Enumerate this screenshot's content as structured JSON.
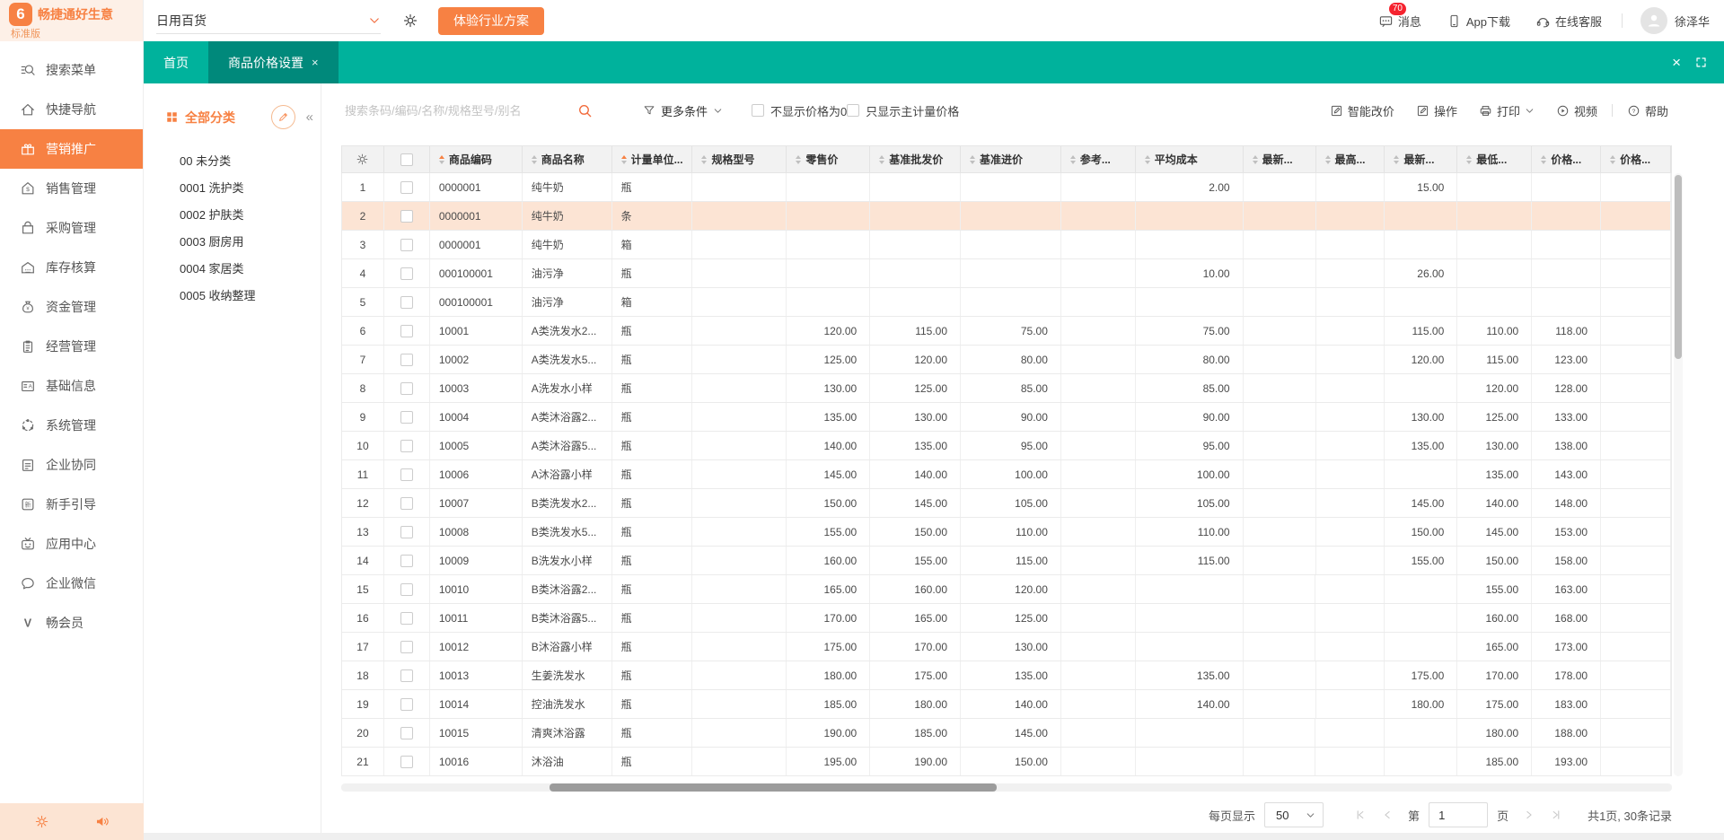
{
  "colors": {
    "teal": "#00b29c",
    "teal_dark": "#00897b",
    "orange": "#f78143",
    "row_highlight": "#fce4d4",
    "badge_red": "#f5232f"
  },
  "brand": {
    "name": "畅捷通好生意",
    "edition": "标准版",
    "logo_glyph": "6"
  },
  "topbar": {
    "org_selector": "日用百货",
    "trial_button": "体验行业方案",
    "messages_label": "消息",
    "messages_badge": "70",
    "app_download": "App下载",
    "online_service": "在线客服",
    "username": "徐泽华"
  },
  "tabs": [
    {
      "key": "home",
      "label": "首页",
      "active": false,
      "closable": false
    },
    {
      "key": "product-price-settings",
      "label": "商品价格设置",
      "active": true,
      "closable": true
    }
  ],
  "sidebar": {
    "items": [
      {
        "key": "menu-search",
        "label": "搜索菜单",
        "icon": "search-icon",
        "active": false
      },
      {
        "key": "quick-nav",
        "label": "快捷导航",
        "icon": "home-icon",
        "active": false
      },
      {
        "key": "marketing",
        "label": "营销推广",
        "icon": "gift-icon",
        "active": true
      },
      {
        "key": "sales",
        "label": "销售管理",
        "icon": "sales-icon",
        "active": false
      },
      {
        "key": "purchase",
        "label": "采购管理",
        "icon": "purchase-icon",
        "active": false
      },
      {
        "key": "inventory",
        "label": "库存核算",
        "icon": "inventory-icon",
        "active": false
      },
      {
        "key": "funds",
        "label": "资金管理",
        "icon": "funds-icon",
        "active": false
      },
      {
        "key": "operations",
        "label": "经营管理",
        "icon": "operations-icon",
        "active": false
      },
      {
        "key": "base-info",
        "label": "基础信息",
        "icon": "base-info-icon",
        "active": false
      },
      {
        "key": "system",
        "label": "系统管理",
        "icon": "system-icon",
        "active": false
      },
      {
        "key": "collaboration",
        "label": "企业协同",
        "icon": "collaboration-icon",
        "active": false
      },
      {
        "key": "guide",
        "label": "新手引导",
        "icon": "guide-icon",
        "active": false
      },
      {
        "key": "app-center",
        "label": "应用中心",
        "icon": "app-center-icon",
        "active": false
      },
      {
        "key": "wechat",
        "label": "企业微信",
        "icon": "wechat-icon",
        "active": false
      },
      {
        "key": "member",
        "label": "畅会员",
        "icon": "member-icon",
        "active": false
      }
    ]
  },
  "category_panel": {
    "title": "全部分类",
    "items": [
      "00 未分类",
      "0001 洗护类",
      "0002 护肤类",
      "0003 厨房用",
      "0004 家居类",
      "0005 收纳整理"
    ]
  },
  "filter_bar": {
    "search_placeholder": "搜索条码/编码/名称/规格型号/别名",
    "more_filters": "更多条件",
    "checkbox_hide_zero": "不显示价格为0",
    "checkbox_main_unit": "只显示主计量价格"
  },
  "toolbar": {
    "smart_reprice": "智能改价",
    "operate": "操作",
    "print": "打印",
    "video": "视频",
    "help": "帮助"
  },
  "table": {
    "columns": [
      {
        "label": "商品编码",
        "sort": "asc"
      },
      {
        "label": "商品名称",
        "sort": "none"
      },
      {
        "label": "计量单位...",
        "sort": "asc"
      },
      {
        "label": "规格型号",
        "sort": "none"
      },
      {
        "label": "零售价",
        "sort": "none"
      },
      {
        "label": "基准批发价",
        "sort": "none"
      },
      {
        "label": "基准进价",
        "sort": "none"
      },
      {
        "label": "参考...",
        "sort": "none"
      },
      {
        "label": "平均成本",
        "sort": "none"
      },
      {
        "label": "最新...",
        "sort": "none"
      },
      {
        "label": "最高...",
        "sort": "none"
      },
      {
        "label": "最新...",
        "sort": "none"
      },
      {
        "label": "最低...",
        "sort": "none"
      },
      {
        "label": "价格...",
        "sort": "none"
      },
      {
        "label": "价格...",
        "sort": "none"
      }
    ],
    "rows": [
      {
        "no": "1",
        "code": "0000001",
        "name": "纯牛奶",
        "unit": "瓶",
        "highlight": false,
        "cells": [
          "",
          "",
          "",
          "",
          "",
          "2.00",
          "",
          "",
          "15.00",
          "",
          "",
          ""
        ]
      },
      {
        "no": "2",
        "code": "0000001",
        "name": "纯牛奶",
        "unit": "条",
        "highlight": true,
        "cells": [
          "",
          "",
          "",
          "",
          "",
          "",
          "",
          "",
          "",
          "",
          "",
          ""
        ]
      },
      {
        "no": "3",
        "code": "0000001",
        "name": "纯牛奶",
        "unit": "箱",
        "highlight": false,
        "cells": [
          "",
          "",
          "",
          "",
          "",
          "",
          "",
          "",
          "",
          "",
          "",
          ""
        ]
      },
      {
        "no": "4",
        "code": "000100001",
        "name": "油污净",
        "unit": "瓶",
        "highlight": false,
        "cells": [
          "",
          "",
          "",
          "",
          "",
          "10.00",
          "",
          "",
          "26.00",
          "",
          "",
          ""
        ]
      },
      {
        "no": "5",
        "code": "000100001",
        "name": "油污净",
        "unit": "箱",
        "highlight": false,
        "cells": [
          "",
          "",
          "",
          "",
          "",
          "",
          "",
          "",
          "",
          "",
          "",
          ""
        ]
      },
      {
        "no": "6",
        "code": "10001",
        "name": "A类洗发水2...",
        "unit": "瓶",
        "highlight": false,
        "cells": [
          "",
          "120.00",
          "115.00",
          "75.00",
          "",
          "75.00",
          "",
          "",
          "115.00",
          "110.00",
          "118.00",
          ""
        ]
      },
      {
        "no": "7",
        "code": "10002",
        "name": "A类洗发水5...",
        "unit": "瓶",
        "highlight": false,
        "cells": [
          "",
          "125.00",
          "120.00",
          "80.00",
          "",
          "80.00",
          "",
          "",
          "120.00",
          "115.00",
          "123.00",
          ""
        ]
      },
      {
        "no": "8",
        "code": "10003",
        "name": "A洗发水小样",
        "unit": "瓶",
        "highlight": false,
        "cells": [
          "",
          "130.00",
          "125.00",
          "85.00",
          "",
          "85.00",
          "",
          "",
          "",
          "120.00",
          "128.00",
          ""
        ]
      },
      {
        "no": "9",
        "code": "10004",
        "name": "A类沐浴露2...",
        "unit": "瓶",
        "highlight": false,
        "cells": [
          "",
          "135.00",
          "130.00",
          "90.00",
          "",
          "90.00",
          "",
          "",
          "130.00",
          "125.00",
          "133.00",
          ""
        ]
      },
      {
        "no": "10",
        "code": "10005",
        "name": "A类沐浴露5...",
        "unit": "瓶",
        "highlight": false,
        "cells": [
          "",
          "140.00",
          "135.00",
          "95.00",
          "",
          "95.00",
          "",
          "",
          "135.00",
          "130.00",
          "138.00",
          ""
        ]
      },
      {
        "no": "11",
        "code": "10006",
        "name": "A沐浴露小样",
        "unit": "瓶",
        "highlight": false,
        "cells": [
          "",
          "145.00",
          "140.00",
          "100.00",
          "",
          "100.00",
          "",
          "",
          "",
          "135.00",
          "143.00",
          ""
        ]
      },
      {
        "no": "12",
        "code": "10007",
        "name": "B类洗发水2...",
        "unit": "瓶",
        "highlight": false,
        "cells": [
          "",
          "150.00",
          "145.00",
          "105.00",
          "",
          "105.00",
          "",
          "",
          "145.00",
          "140.00",
          "148.00",
          ""
        ]
      },
      {
        "no": "13",
        "code": "10008",
        "name": "B类洗发水5...",
        "unit": "瓶",
        "highlight": false,
        "cells": [
          "",
          "155.00",
          "150.00",
          "110.00",
          "",
          "110.00",
          "",
          "",
          "150.00",
          "145.00",
          "153.00",
          ""
        ]
      },
      {
        "no": "14",
        "code": "10009",
        "name": "B洗发水小样",
        "unit": "瓶",
        "highlight": false,
        "cells": [
          "",
          "160.00",
          "155.00",
          "115.00",
          "",
          "115.00",
          "",
          "",
          "155.00",
          "150.00",
          "158.00",
          ""
        ]
      },
      {
        "no": "15",
        "code": "10010",
        "name": "B类沐浴露2...",
        "unit": "瓶",
        "highlight": false,
        "cells": [
          "",
          "165.00",
          "160.00",
          "120.00",
          "",
          "",
          "",
          "",
          "",
          "155.00",
          "163.00",
          ""
        ]
      },
      {
        "no": "16",
        "code": "10011",
        "name": "B类沐浴露5...",
        "unit": "瓶",
        "highlight": false,
        "cells": [
          "",
          "170.00",
          "165.00",
          "125.00",
          "",
          "",
          "",
          "",
          "",
          "160.00",
          "168.00",
          ""
        ]
      },
      {
        "no": "17",
        "code": "10012",
        "name": "B沐浴露小样",
        "unit": "瓶",
        "highlight": false,
        "cells": [
          "",
          "175.00",
          "170.00",
          "130.00",
          "",
          "",
          "",
          "",
          "",
          "165.00",
          "173.00",
          ""
        ]
      },
      {
        "no": "18",
        "code": "10013",
        "name": "生姜洗发水",
        "unit": "瓶",
        "highlight": false,
        "cells": [
          "",
          "180.00",
          "175.00",
          "135.00",
          "",
          "135.00",
          "",
          "",
          "175.00",
          "170.00",
          "178.00",
          ""
        ]
      },
      {
        "no": "19",
        "code": "10014",
        "name": "控油洗发水",
        "unit": "瓶",
        "highlight": false,
        "cells": [
          "",
          "185.00",
          "180.00",
          "140.00",
          "",
          "140.00",
          "",
          "",
          "180.00",
          "175.00",
          "183.00",
          ""
        ]
      },
      {
        "no": "20",
        "code": "10015",
        "name": "清爽沐浴露",
        "unit": "瓶",
        "highlight": false,
        "cells": [
          "",
          "190.00",
          "185.00",
          "145.00",
          "",
          "",
          "",
          "",
          "",
          "180.00",
          "188.00",
          ""
        ]
      },
      {
        "no": "21",
        "code": "10016",
        "name": "沐浴油",
        "unit": "瓶",
        "highlight": false,
        "cells": [
          "",
          "195.00",
          "190.00",
          "150.00",
          "",
          "",
          "",
          "",
          "",
          "185.00",
          "193.00",
          ""
        ]
      }
    ]
  },
  "pagination": {
    "per_page_label": "每页显示",
    "per_page": "50",
    "page_prefix": "第",
    "page": "1",
    "page_suffix": "页",
    "total": "共1页, 30条记录"
  }
}
